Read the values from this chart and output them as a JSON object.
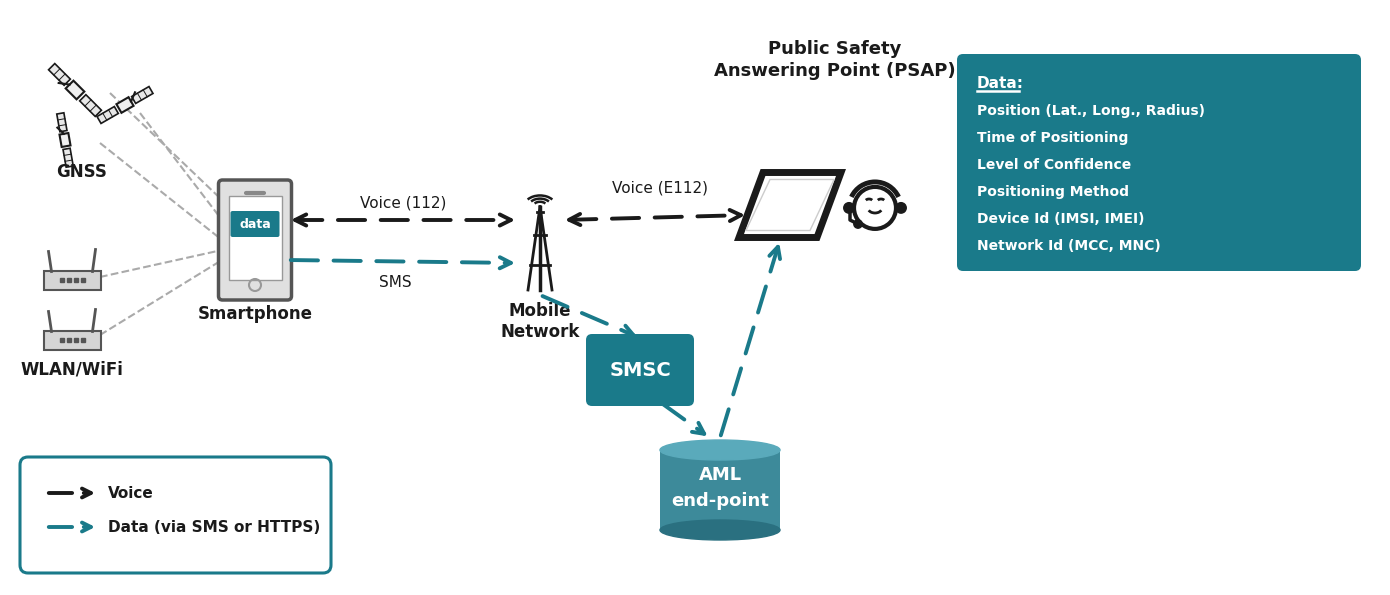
{
  "teal_color": "#1a7a8a",
  "black": "#1a1a1a",
  "dark_gray": "#333333",
  "mid_gray": "#666666",
  "light_gray": "#aaaaaa",
  "white": "#ffffff",
  "psap_title": "Public Safety\nAnswering Point (PSAP)",
  "data_box_title": "Data:",
  "data_items": [
    "Position (Lat., Long., Radius)",
    "Time of Positioning",
    "Level of Confidence",
    "Positioning Method",
    "Device Id (IMSI, IMEI)",
    "Network Id (MCC, MNC)"
  ],
  "legend_voice": "Voice",
  "legend_data": "Data (via SMS or HTTPS)",
  "smsc_label": "SMSC",
  "aml_label": "AML\nend-point",
  "mobile_network_label": "Mobile\nNetwork",
  "smartphone_label": "Smartphone",
  "gnss_label": "GNSS",
  "wlan_label": "WLAN/WiFi",
  "voice_112_label": "Voice (112)",
  "voice_e112_label": "Voice (E112)",
  "sms_label": "SMS",
  "aml_body_color": "#3d8a9a",
  "aml_top_color": "#5aaabb",
  "aml_bottom_color": "#2a7080"
}
